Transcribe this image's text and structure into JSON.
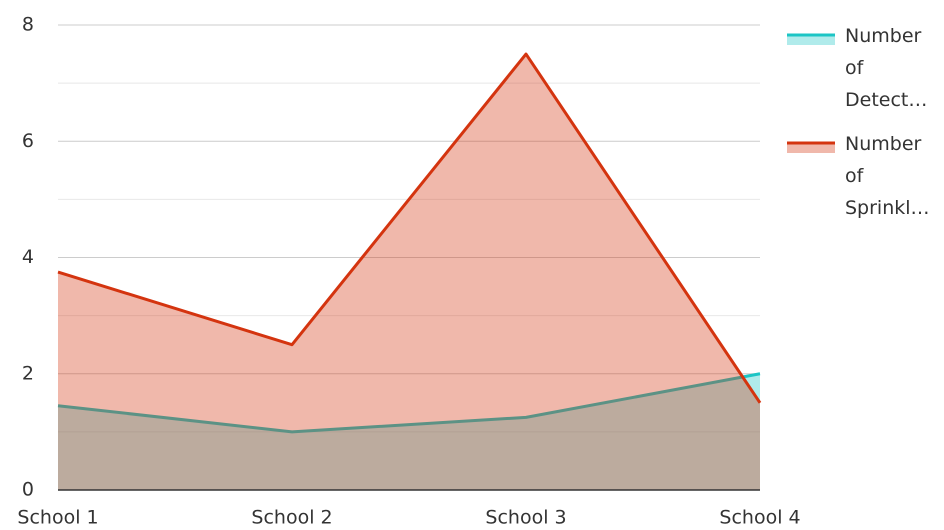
{
  "chart_data": {
    "type": "area",
    "categories": [
      "School 1",
      "School 2",
      "School 3",
      "School 4"
    ],
    "series": [
      {
        "name": "Number of Detect…",
        "color": "#1cc5c5",
        "values": [
          1.45,
          1.0,
          1.25,
          2.0
        ]
      },
      {
        "name": "Number of Sprinkl…",
        "color": "#d4340f",
        "values": [
          3.75,
          2.5,
          7.5,
          1.5
        ]
      }
    ],
    "ylim": [
      0,
      8
    ],
    "yticks": [
      0,
      2,
      4,
      6,
      8
    ],
    "minor_yticks": [
      1,
      3,
      5,
      7
    ],
    "grid": true,
    "legend": "right"
  }
}
